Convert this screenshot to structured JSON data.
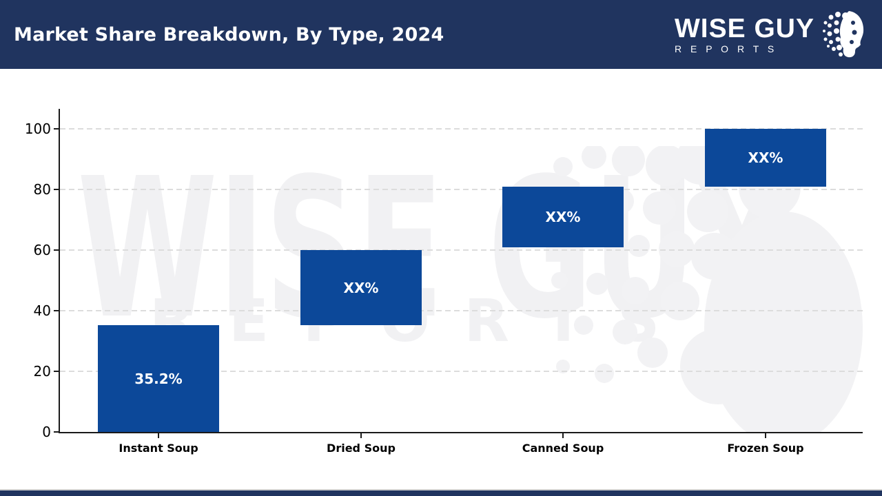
{
  "header": {
    "title": "Market Share Breakdown, By Type, 2024",
    "brand_line1": "WISE GUY",
    "brand_line2": "R E P O R T S",
    "bg_color": "#20345f",
    "icons": {
      "brand_head": "dotted-face-profile-icon"
    }
  },
  "watermark": {
    "line1": "WISE GUY",
    "line2": "R E P O R T S",
    "color": "#f1f1f3"
  },
  "chart_data": {
    "type": "bar",
    "variant": "waterfall",
    "title": "Market Share Breakdown, By Type, 2024",
    "categories": [
      "Instant Soup",
      "Dried Soup",
      "Canned Soup",
      "Frozen Soup"
    ],
    "segments": [
      {
        "category": "Instant Soup",
        "start": 0,
        "end": 35.2,
        "label": "35.2%"
      },
      {
        "category": "Dried Soup",
        "start": 35.2,
        "end": 60,
        "label": "XX%"
      },
      {
        "category": "Canned Soup",
        "start": 61,
        "end": 81,
        "label": "XX%"
      },
      {
        "category": "Frozen Soup",
        "start": 81,
        "end": 100,
        "label": "XX%"
      }
    ],
    "xlabel": "",
    "ylabel": "",
    "yticks": [
      0,
      20,
      40,
      60,
      80,
      100
    ],
    "ylim": [
      0,
      107
    ],
    "grid": "horizontal-dashed",
    "legend": "none",
    "bar_color": "#0c4899",
    "bar_label_color": "#ffffff",
    "axis_color": "#1a1a1a"
  },
  "footer": {
    "bg_color": "#20345f"
  }
}
